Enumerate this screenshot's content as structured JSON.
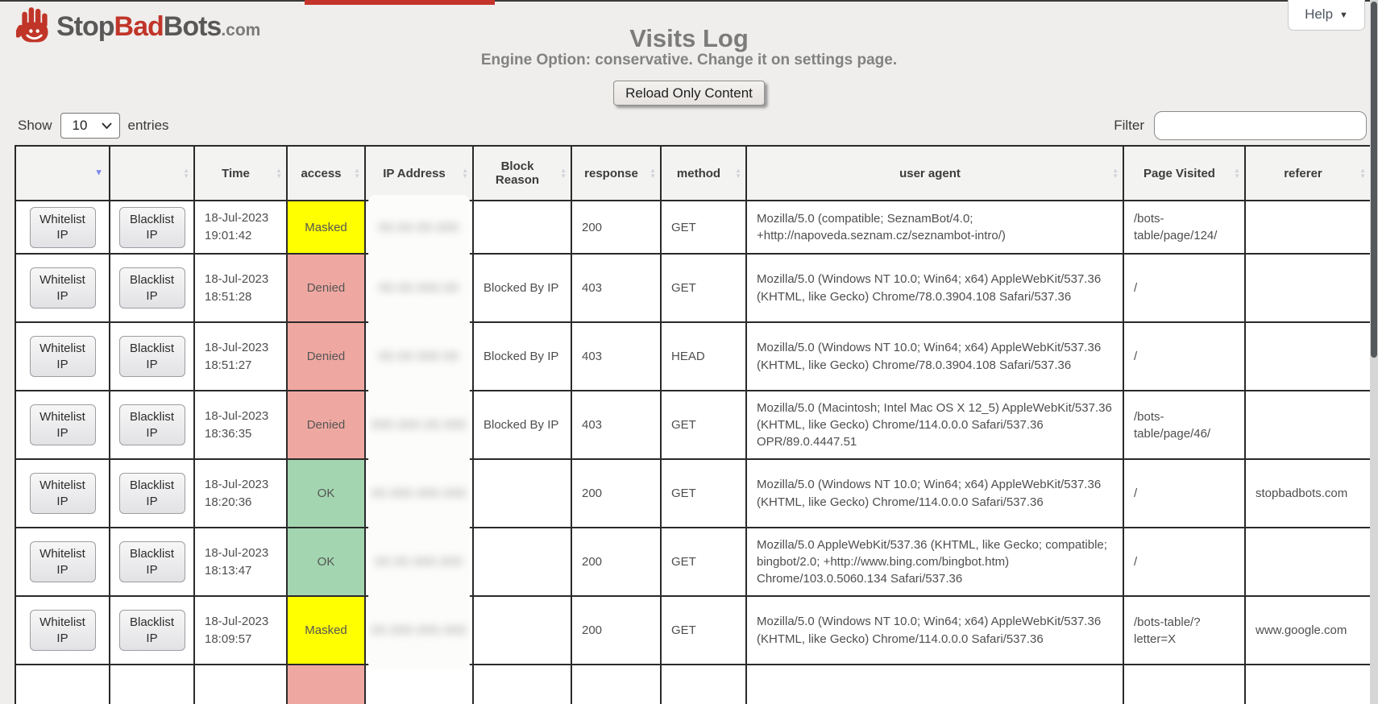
{
  "page": {
    "background": "#efeeec"
  },
  "chrome": {
    "top_line_color": "#3a3a3a",
    "top_red_bar_color": "#c5342b"
  },
  "icons": {
    "sort_asc": "▲",
    "sort_desc": "▼",
    "caret_down": "▼",
    "select_chevron": "∨",
    "hand_icon": "red-hand-smiley"
  },
  "logo": {
    "part1": "Stop",
    "part2": "Bad",
    "part3": "Bots",
    "suffix": ".com",
    "red": "#c13529",
    "dark": "#595757",
    "suffix_color": "#7c7a78"
  },
  "help_button": {
    "label": "Help"
  },
  "titles": {
    "title": "Visits Log",
    "subtitle": "Engine Option: conservative. Change it on settings page."
  },
  "toolbar": {
    "reload_label": "Reload Only Content"
  },
  "list_controls": {
    "show_label": "Show",
    "page_size": "10",
    "entries_label": "entries",
    "filter_label": "Filter",
    "filter_value": ""
  },
  "status_colors": {
    "masked": "#ffff00",
    "denied": "#efa8a1",
    "ok": "#a3d6b0"
  },
  "scrollbar": {
    "track": "#d6d6d6",
    "thumb": "#55585c"
  },
  "table": {
    "action_buttons": {
      "whitelist": "Whitelist IP",
      "blacklist": "Blacklist IP"
    },
    "headers": [
      {
        "label": "",
        "sort": "desc"
      },
      {
        "label": "",
        "sort": "both"
      },
      {
        "label": "Time",
        "sort": "both"
      },
      {
        "label": "access",
        "sort": "both"
      },
      {
        "label": "IP Address",
        "sort": "both"
      },
      {
        "label": "Block Reason",
        "sort": "both"
      },
      {
        "label": "response",
        "sort": "both"
      },
      {
        "label": "method",
        "sort": "both"
      },
      {
        "label": "user agent",
        "sort": "both"
      },
      {
        "label": "Page Visited",
        "sort": "both"
      },
      {
        "label": "referer",
        "sort": "both"
      }
    ],
    "rows": [
      {
        "date": "18-Jul-2023",
        "time": "19:01:42",
        "access": "Masked",
        "status": "masked",
        "ip_masked_placeholder": "00.00.00.000",
        "block_reason": "",
        "response": "200",
        "method": "GET",
        "user_agent": "Mozilla/5.0 (compatible; SeznamBot/4.0; +http://napoveda.seznam.cz/seznambot-intro/)",
        "page_visited": "/bots-table/page/124/",
        "referer": ""
      },
      {
        "date": "18-Jul-2023",
        "time": "18:51:28",
        "access": "Denied",
        "status": "denied",
        "ip_masked_placeholder": "00.00.000.00",
        "block_reason": "Blocked By IP",
        "response": "403",
        "method": "GET",
        "user_agent": "Mozilla/5.0 (Windows NT 10.0; Win64; x64) AppleWebKit/537.36 (KHTML, like Gecko) Chrome/78.0.3904.108 Safari/537.36",
        "page_visited": "/",
        "referer": ""
      },
      {
        "date": "18-Jul-2023",
        "time": "18:51:27",
        "access": "Denied",
        "status": "denied",
        "ip_masked_placeholder": "00.00.000.00",
        "block_reason": "Blocked By IP",
        "response": "403",
        "method": "HEAD",
        "user_agent": "Mozilla/5.0 (Windows NT 10.0; Win64; x64) AppleWebKit/537.36 (KHTML, like Gecko) Chrome/78.0.3904.108 Safari/537.36",
        "page_visited": "/",
        "referer": ""
      },
      {
        "date": "18-Jul-2023",
        "time": "18:36:35",
        "access": "Denied",
        "status": "denied",
        "ip_masked_placeholder": "000.000.00.000",
        "block_reason": "Blocked By IP",
        "response": "403",
        "method": "GET",
        "user_agent": "Mozilla/5.0 (Macintosh; Intel Mac OS X 12_5) AppleWebKit/537.36 (KHTML, like Gecko) Chrome/114.0.0.0 Safari/537.36 OPR/89.0.4447.51",
        "page_visited": "/bots-table/page/46/",
        "referer": ""
      },
      {
        "date": "18-Jul-2023",
        "time": "18:20:36",
        "access": "OK",
        "status": "ok",
        "ip_masked_placeholder": "00.000.000.000",
        "block_reason": "",
        "response": "200",
        "method": "GET",
        "user_agent": "Mozilla/5.0 (Windows NT 10.0; Win64; x64) AppleWebKit/537.36 (KHTML, like Gecko) Chrome/114.0.0.0 Safari/537.36",
        "page_visited": "/",
        "referer": "stopbadbots.com"
      },
      {
        "date": "18-Jul-2023",
        "time": "18:13:47",
        "access": "OK",
        "status": "ok",
        "ip_masked_placeholder": "00.00.000.000",
        "block_reason": "",
        "response": "200",
        "method": "GET",
        "user_agent": "Mozilla/5.0 AppleWebKit/537.36 (KHTML, like Gecko; compatible; bingbot/2.0; +http://www.bing.com/bingbot.htm) Chrome/103.0.5060.134 Safari/537.36",
        "page_visited": "/",
        "referer": ""
      },
      {
        "date": "18-Jul-2023",
        "time": "18:09:57",
        "access": "Masked",
        "status": "masked",
        "ip_masked_placeholder": "00.000.000.000",
        "block_reason": "",
        "response": "200",
        "method": "GET",
        "user_agent": "Mozilla/5.0 (Windows NT 10.0; Win64; x64) AppleWebKit/537.36 (KHTML, like Gecko) Chrome/114.0.0.0 Safari/537.36",
        "page_visited": "/bots-table/?letter=X",
        "referer": "www.google.com"
      }
    ],
    "partial_row": {
      "status": "denied"
    }
  }
}
